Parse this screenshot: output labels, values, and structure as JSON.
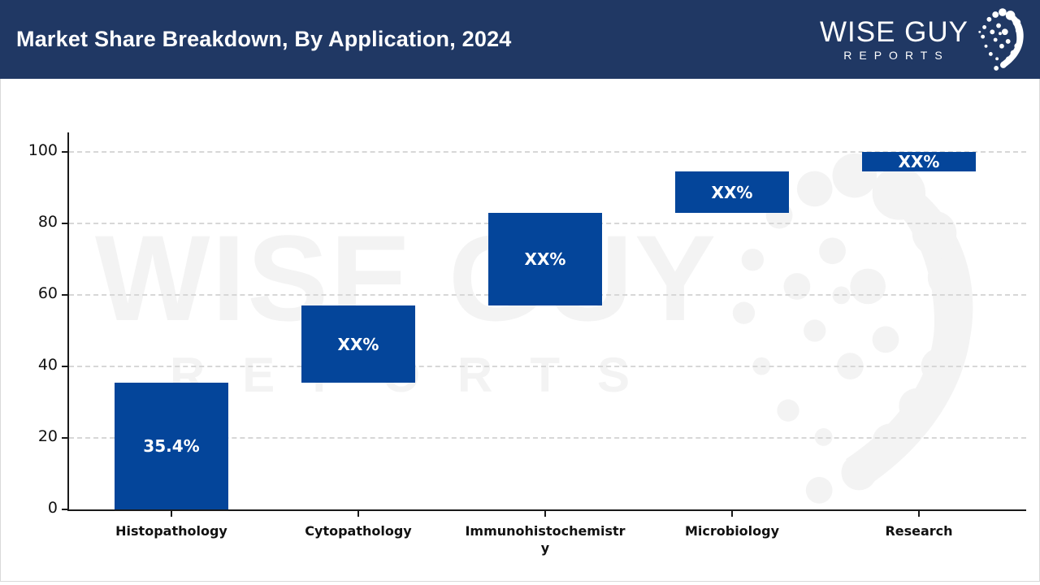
{
  "header": {
    "title": "Market Share Breakdown, By Application, 2024",
    "logo": {
      "line1": "WISE GUY",
      "line2": "REPORTS"
    }
  },
  "watermark": {
    "line1": "WISE GUY",
    "line2": "REPORTS"
  },
  "chart_data": {
    "type": "bar",
    "subtype": "waterfall",
    "title": "Market Share Breakdown, By Application, 2024",
    "xlabel": "",
    "ylabel": "",
    "categories": [
      "Histopathology",
      "Cytopathology",
      "Immunohistochemistry",
      "Microbiology",
      "Research"
    ],
    "segments": [
      {
        "category": "Histopathology",
        "from": 0,
        "to": 35.4,
        "label": "35.4%"
      },
      {
        "category": "Cytopathology",
        "from": 35.4,
        "to": 57,
        "label": "XX%"
      },
      {
        "category": "Immunohistochemistry",
        "from": 57,
        "to": 83,
        "label": "XX%"
      },
      {
        "category": "Microbiology",
        "from": 83,
        "to": 94.5,
        "label": "XX%"
      },
      {
        "category": "Research",
        "from": 94.5,
        "to": 100,
        "label": "XX%"
      }
    ],
    "yticks": [
      0,
      20,
      40,
      60,
      80,
      100
    ],
    "ylim": [
      0,
      105.5
    ],
    "grid": "horizontal-dashed",
    "legend": "none",
    "bar_color": "#04459A"
  },
  "colors": {
    "header_bg": "#203864",
    "bar": "#04459A",
    "gridline": "#d7d7d7",
    "axis": "#1a1a1a",
    "watermark": "#f3f3f3",
    "background": "#ffffff"
  }
}
